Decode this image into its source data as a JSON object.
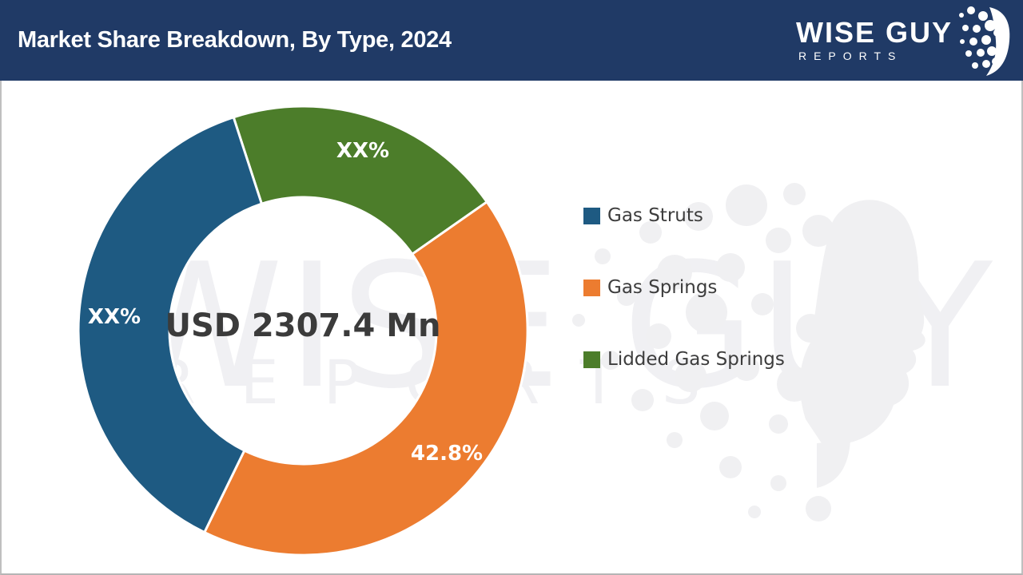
{
  "header": {
    "title": "Market Share Breakdown, By Type, 2024",
    "bg_color": "#203a66",
    "logo": {
      "line1": "WISE GUY",
      "line2": "REPORTS"
    }
  },
  "watermark": {
    "big_text": "WISE GUY",
    "small_text": "REPORTS"
  },
  "chart_data": {
    "type": "pie",
    "subtype": "donut",
    "title": "Market Share Breakdown, By Type, 2024",
    "center_label": "USD 2307.4 Mn",
    "start_angle_deg": -18,
    "segments": [
      {
        "name": "Lidded Gas Springs",
        "label": "XX%",
        "value_pct": null,
        "sweep_deg": 73,
        "color": "#4c7d2a"
      },
      {
        "name": "Gas Springs",
        "label": "42.8%",
        "value_pct": 42.8,
        "sweep_deg": 151,
        "color": "#ec7c30"
      },
      {
        "name": "Gas Struts",
        "label": "XX%",
        "value_pct": null,
        "sweep_deg": 136,
        "color": "#1e5a82"
      }
    ],
    "legend": [
      {
        "label": "Gas Struts",
        "color": "#1e5a82"
      },
      {
        "label": "Gas Springs",
        "color": "#ec7c30"
      },
      {
        "label": "Lidded Gas Springs",
        "color": "#4c7d2a"
      }
    ],
    "legend_position": "right"
  }
}
